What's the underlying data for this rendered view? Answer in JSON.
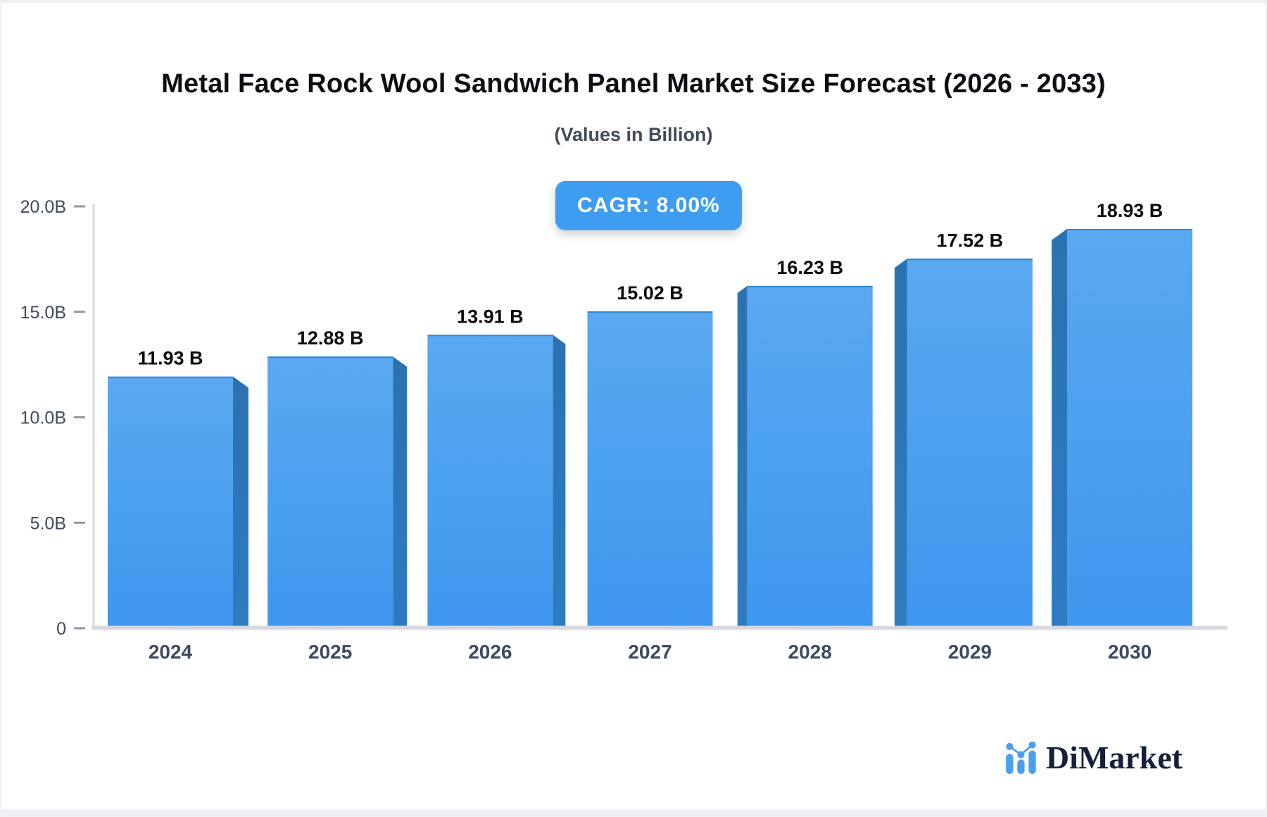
{
  "header": {
    "title": "Metal Face Rock Wool Sandwich Panel Market Size Forecast (2026 - 2033)",
    "subtitle": "(Values in Billion)"
  },
  "badge": {
    "label": "CAGR: 8.00%",
    "background": "#3f9df1",
    "text_color": "#ffffff"
  },
  "chart_data": {
    "type": "bar",
    "title": "Metal Face Rock Wool Sandwich Panel Market Size Forecast (2026 - 2033)",
    "subtitle": "(Values in Billion)",
    "categories": [
      "2024",
      "2025",
      "2026",
      "2027",
      "2028",
      "2029",
      "2030"
    ],
    "values": [
      11.93,
      12.88,
      13.91,
      15.02,
      16.23,
      17.52,
      18.93
    ],
    "bar_labels": [
      "11.93 B",
      "12.88 B",
      "13.91 B",
      "15.02 B",
      "16.23 B",
      "17.52 B",
      "18.93 B"
    ],
    "unit": "Billion",
    "ylim": [
      0,
      20
    ],
    "y_ticks": [
      {
        "value": 0,
        "label": "0"
      },
      {
        "value": 5,
        "label": "5.0B"
      },
      {
        "value": 10,
        "label": "10.0B"
      },
      {
        "value": 15,
        "label": "15.0B"
      },
      {
        "value": 20,
        "label": "20.0B"
      }
    ],
    "grid": "off",
    "legend": "none",
    "colors": {
      "bar_face_top": "#5aa9f1",
      "bar_face_bottom": "#3d97ee",
      "bar_top_edge": "#2f86d2",
      "bar_side": "#2d7cc0",
      "bar_side_dark": "#2b72b0",
      "axis_line": "#d7d9de",
      "tick_dash": "#8e98a4",
      "y_label": "#3f4a57",
      "x_label": "#3c4b61",
      "value_label": "#0b0b10"
    }
  },
  "footer": {
    "logo_text": "DiMarket",
    "logo_icon": "bar-chart-logo-icon",
    "logo_text_color": "#15203a",
    "logo_icon_color": "#4a9ff0"
  }
}
